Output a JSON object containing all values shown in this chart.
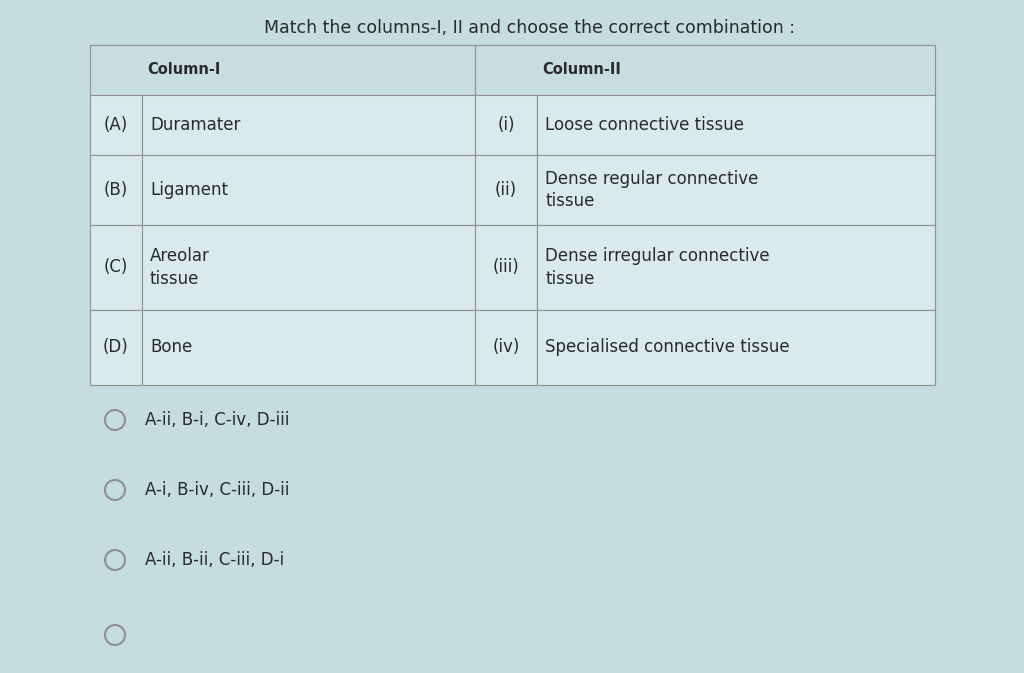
{
  "title": "Match the columns-I, II and choose the correct combination :",
  "title_fontsize": 12.5,
  "bg_color": "#c5dce0",
  "table_bg": "#daeaec",
  "header_bg": "#c8dde0",
  "cell_border_color": "#909090",
  "text_color": "#2a2a2a",
  "col1_header": "Column-I",
  "col2_header": "Column-II",
  "col1_rows": [
    [
      "(A)",
      "Duramater"
    ],
    [
      "(B)",
      "Ligament"
    ],
    [
      "(C)",
      "Areolar\ntissue"
    ],
    [
      "(D)",
      "Bone"
    ]
  ],
  "col2_rows": [
    [
      "(i)",
      "Loose connective tissue"
    ],
    [
      "(ii)",
      "Dense regular connective\ntissue"
    ],
    [
      "(iii)",
      "Dense irregular connective\ntissue"
    ],
    [
      "(iv)",
      "Specialised connective tissue"
    ]
  ],
  "options_visible": [
    "A-ii, B-i, C-iv, D-iii",
    "A-i, B-iv, C-iii, D-ii",
    "A-ii, B-ii, C-iii, D-i"
  ]
}
